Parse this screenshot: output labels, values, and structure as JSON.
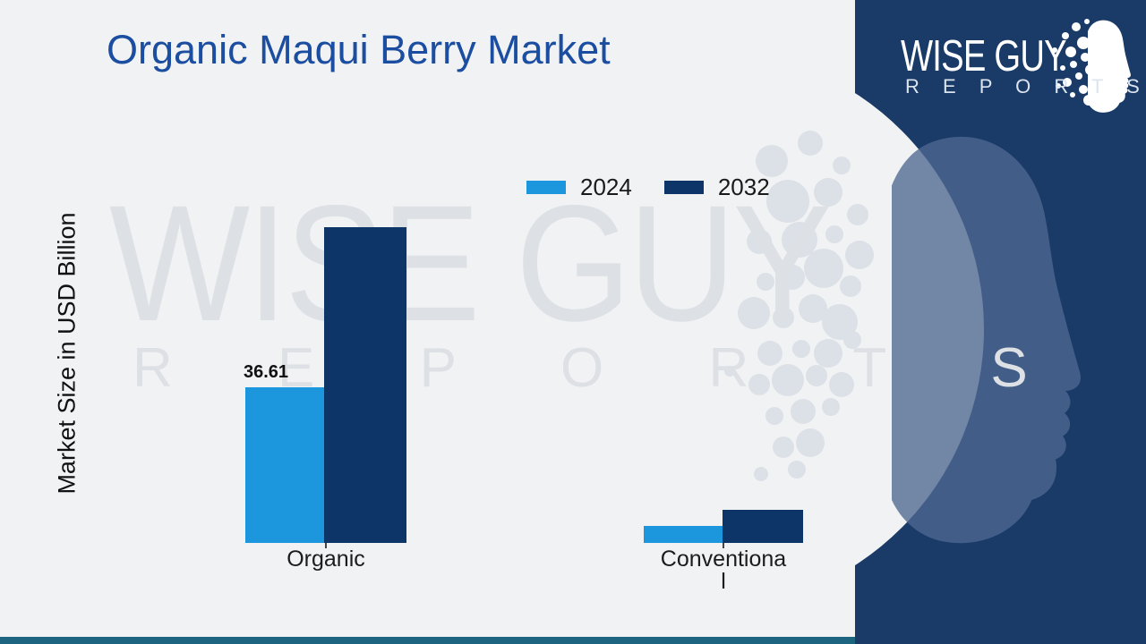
{
  "header": {
    "title": "Organic Maqui Berry Market"
  },
  "logo": {
    "line1": "WISE GUY",
    "line2": "R E P O R T S"
  },
  "watermark": {
    "line1": "WISE GUY",
    "line2": "R E P O R T S"
  },
  "chart_data": {
    "type": "bar",
    "title": "Organic Maqui Berry Market",
    "xlabel": "",
    "ylabel": "Market Size in USD Billion",
    "categories": [
      "Organic",
      "Conventional"
    ],
    "category_display_lines": [
      [
        "Organic"
      ],
      [
        "Conventiona",
        "l"
      ]
    ],
    "series": [
      {
        "name": "2024",
        "color": "#1c97dd",
        "values": [
          36.61,
          4.0
        ]
      },
      {
        "name": "2032",
        "color": "#0d3568",
        "values": [
          74.3,
          7.8
        ]
      }
    ],
    "bar_labels": {
      "organic_2024": "36.61"
    },
    "ylim": [
      0,
      78
    ],
    "grid": false,
    "legend_position": "top-right"
  },
  "colors": {
    "title_blue": "#1b4da0",
    "bar_2024": "#1c97dd",
    "bar_2032": "#0d3568",
    "brand_navy": "#1a3a68",
    "footer_teal": "#1d6480",
    "background": "#f1f2f3",
    "face_watermark_slate": "#4e688f",
    "watermark_gray": "#dde0e5"
  }
}
